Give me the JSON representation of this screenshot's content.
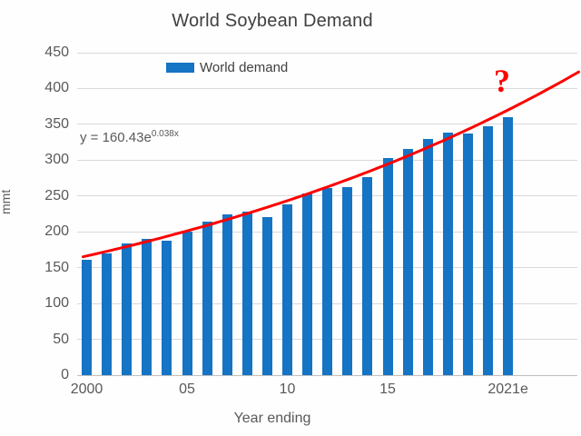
{
  "title": "World Soybean Demand",
  "legend": {
    "label": "World demand"
  },
  "equation": {
    "prefix": "y = 160.43e",
    "exponent": "0.038x"
  },
  "annotation": {
    "question_mark": "?"
  },
  "y_axis": {
    "label": "mmt",
    "ticks": [
      0,
      50,
      100,
      150,
      200,
      250,
      300,
      350,
      400,
      450
    ]
  },
  "x_axis": {
    "label": "Year ending",
    "ticks": [
      {
        "index": 0,
        "label": "2000"
      },
      {
        "index": 5,
        "label": "05"
      },
      {
        "index": 10,
        "label": "10"
      },
      {
        "index": 15,
        "label": "15"
      },
      {
        "index": 21,
        "label": "2021e"
      }
    ]
  },
  "colors": {
    "bar": "#1574c4",
    "trend": "#fe0000",
    "grid": "#d9d9d9",
    "text": "#595959"
  },
  "chart_data": {
    "type": "bar",
    "title": "World Soybean Demand",
    "xlabel": "Year ending",
    "ylabel": "mmt",
    "ylim": [
      0,
      450
    ],
    "grid": true,
    "legend_position": "top-center",
    "categories": [
      "2000",
      "2001",
      "2002",
      "2003",
      "2004",
      "2005",
      "2006",
      "2007",
      "2008",
      "2009",
      "2010",
      "2011",
      "2012",
      "2013",
      "2014",
      "2015",
      "2016",
      "2017",
      "2018",
      "2019",
      "2020",
      "2021e"
    ],
    "series": [
      {
        "name": "World demand",
        "values": [
          161,
          170,
          184,
          191,
          188,
          201,
          214,
          224,
          228,
          221,
          238,
          254,
          261,
          263,
          276,
          303,
          316,
          330,
          339,
          337,
          347,
          360
        ]
      }
    ],
    "trendline": {
      "type": "exponential",
      "a": 160.43,
      "b": 0.038,
      "label": "y = 160.43e^0.038x",
      "extends_past_data": true
    }
  }
}
